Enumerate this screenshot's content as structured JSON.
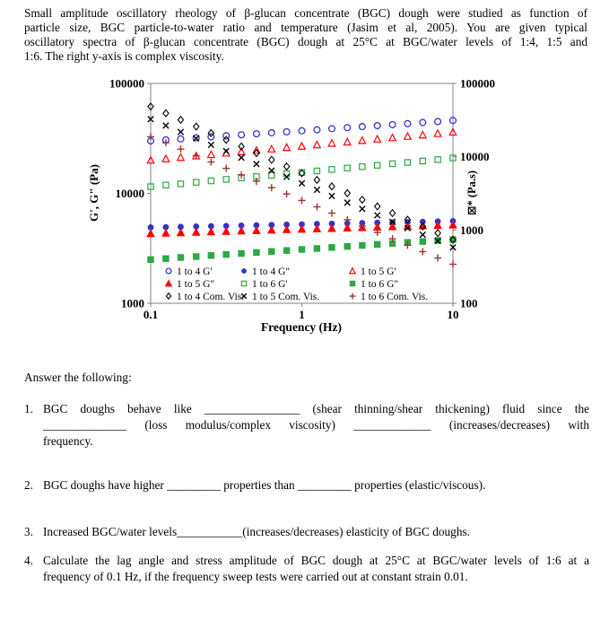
{
  "intro": {
    "lines": [
      "Small amplitude oscillatory rheology of β-glucan concentrate (BGC) dough were studied as function of",
      "particle size, BGC particle-to-water ratio and temperature (Jasim et al, 2005). You are given typical",
      "oscillatory spectra of β-glucan concentrate (BGC) dough at 25°C at BGC/water levels of 1:4, 1:5 and",
      "1:6. The right y-axis is complex viscosity."
    ]
  },
  "answer_heading": "Answer the following:",
  "questions": [
    {
      "num": "1.",
      "lines": [
        "BGC doughs behave like ________________ (shear thinning/shear thickening) fluid since the",
        "______________ (loss modulus/complex viscosity) _____________ (increases/decreases) with",
        "frequency."
      ]
    },
    {
      "num": "2.",
      "lines": [
        "BGC doughs have higher _________ properties than _________ properties (elastic/viscous)."
      ]
    },
    {
      "num": "3.",
      "lines": [
        "Increased BGC/water levels___________(increases/decreases) elasticity of BGC doughs."
      ]
    },
    {
      "num": "4.",
      "lines": [
        "Calculate the lag angle and stress amplitude of BGC dough at 25°C at BGC/water levels of 1:6 at a",
        "frequency of 0.1 Hz, if the frequency sweep tests were carried out at constant strain 0.01."
      ]
    }
  ],
  "chart_data": {
    "type": "scatter",
    "log_x": true,
    "log_y": true,
    "grid": false,
    "x_label": "Frequency (Hz)",
    "y_left_label": "G', G\" (Pa)",
    "y_right_label": "⊠* (Pa.s)",
    "x_ticks": [
      "0.1",
      "1",
      "10"
    ],
    "y_left_ticks": [
      "1000",
      "10000",
      "100000"
    ],
    "y_right_ticks": [
      "100",
      "1000",
      "10000",
      "100000"
    ],
    "x_range": [
      0.1,
      10
    ],
    "y_left_range": [
      1000,
      100000
    ],
    "y_right_range": [
      100,
      100000
    ],
    "legend_position": "inside-bottom",
    "frequencies": [
      0.1,
      0.126,
      0.158,
      0.2,
      0.251,
      0.316,
      0.398,
      0.501,
      0.631,
      0.794,
      1.0,
      1.26,
      1.58,
      2.0,
      2.51,
      3.16,
      3.98,
      5.01,
      6.31,
      7.94,
      10.0
    ],
    "series": [
      {
        "name": "1 to 4 G'",
        "axis": "left",
        "marker": "circle-open",
        "color": "#3333CC",
        "values": [
          30000,
          30650,
          31300,
          32000,
          32700,
          33400,
          34100,
          34800,
          35600,
          36300,
          37100,
          37900,
          38800,
          39600,
          40500,
          41300,
          42200,
          43100,
          44100,
          45000,
          46000
        ]
      },
      {
        "name": "1 to 4 G\"",
        "axis": "left",
        "marker": "circle-filled",
        "color": "#3333CC",
        "values": [
          4900,
          4930,
          4960,
          5000,
          5030,
          5060,
          5090,
          5130,
          5160,
          5200,
          5230,
          5270,
          5300,
          5340,
          5370,
          5410,
          5450,
          5480,
          5520,
          5560,
          5600
        ]
      },
      {
        "name": "1 to 5 G'",
        "axis": "left",
        "marker": "triangle-open",
        "color": "#FF0000",
        "values": [
          20000,
          20600,
          21200,
          21900,
          22500,
          23200,
          23900,
          24600,
          25300,
          26100,
          26800,
          27600,
          28500,
          29300,
          30200,
          31100,
          32000,
          33000,
          33900,
          35000,
          36000
        ]
      },
      {
        "name": "1 to 5 G\"",
        "axis": "left",
        "marker": "triangle-filled",
        "color": "#FF0000",
        "values": [
          4300,
          4340,
          4380,
          4420,
          4460,
          4500,
          4540,
          4580,
          4620,
          4670,
          4710,
          4750,
          4790,
          4840,
          4880,
          4920,
          4970,
          5010,
          5060,
          5100,
          5150
        ]
      },
      {
        "name": "1 to 6 G'",
        "axis": "left",
        "marker": "square-open",
        "color": "#2EA844",
        "values": [
          11500,
          11900,
          12200,
          12600,
          13000,
          13400,
          13800,
          14200,
          14600,
          15100,
          15500,
          16000,
          16500,
          17000,
          17500,
          18000,
          18600,
          19100,
          19700,
          20300,
          21000
        ]
      },
      {
        "name": "1 to 6 G\"",
        "axis": "left",
        "marker": "square-filled",
        "color": "#2EA844",
        "values": [
          2500,
          2550,
          2610,
          2660,
          2720,
          2780,
          2840,
          2900,
          2960,
          3020,
          3090,
          3150,
          3220,
          3290,
          3360,
          3430,
          3500,
          3580,
          3650,
          3730,
          3800
        ]
      },
      {
        "name": "1 to 4 Com. Vis.",
        "axis": "right",
        "marker": "diamond-open",
        "color": "#000000",
        "values": [
          48400,
          39200,
          31900,
          25800,
          21000,
          17000,
          13800,
          11200,
          9070,
          7350,
          5960,
          4830,
          3940,
          3180,
          2590,
          2100,
          1700,
          1380,
          1120,
          909,
          738
        ]
      },
      {
        "name": "1 to 5 Com. Vis.",
        "axis": "right",
        "marker": "x-cross",
        "color": "#000000",
        "values": [
          32500,
          26600,
          21800,
          17800,
          14500,
          11900,
          9720,
          7950,
          6480,
          5310,
          4330,
          3540,
          2910,
          2360,
          1940,
          1590,
          1290,
          1060,
          864,
          709,
          579
        ]
      },
      {
        "name": "1 to 6 Com. Vis.",
        "axis": "right",
        "marker": "plus",
        "color": "#993333",
        "values": [
          18700,
          15500,
          12700,
          10300,
          8480,
          6940,
          5670,
          4630,
          3780,
          3100,
          2530,
          2070,
          1700,
          1380,
          1130,
          926,
          759,
          619,
          507,
          415,
          341
        ]
      }
    ],
    "legend": {
      "rows": [
        [
          0,
          1,
          2
        ],
        [
          3,
          4,
          5
        ],
        [
          6,
          7,
          8
        ]
      ]
    }
  }
}
